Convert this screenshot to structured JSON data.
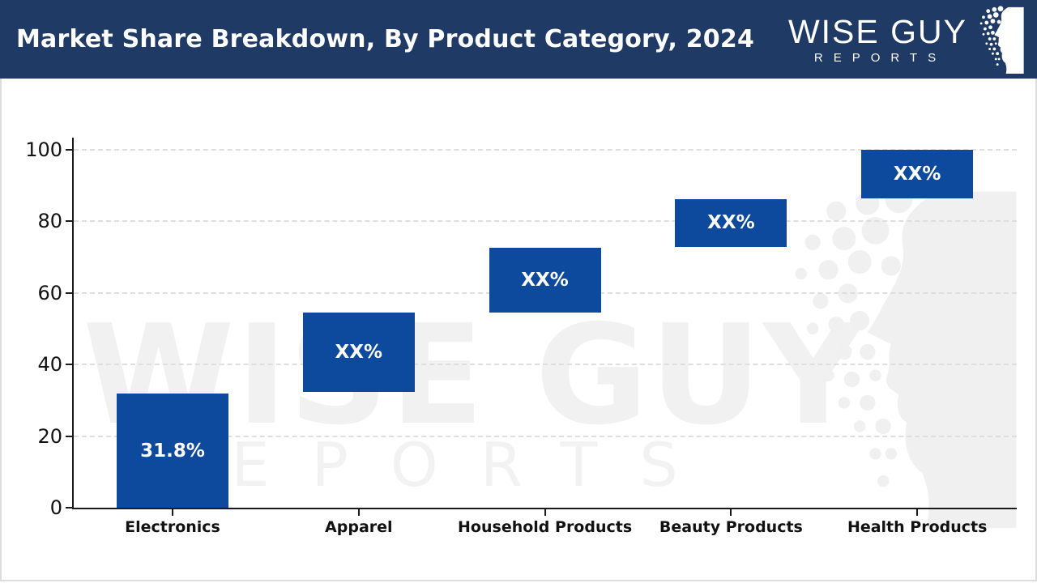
{
  "header": {
    "title": "Market Share Breakdown, By Product Category, 2024",
    "bg_color": "#1f3a64",
    "logo": {
      "name": "Wise Guy Reports",
      "line1": "WISE GUY",
      "line2": "REPORTS"
    }
  },
  "watermark": {
    "line1": "WISE GUY",
    "line2": "REPORTS"
  },
  "colors": {
    "header_bg": "#1f3a64",
    "bar": "#0d4a9e",
    "bar_label": "#ffffff",
    "axis": "#1a1a1a",
    "grid": "#dedede",
    "tick_label": "#111111",
    "watermark": "#f0f0f0"
  },
  "chart_data": {
    "type": "bar",
    "subtype": "floating-segment-waterfall",
    "title": "Market Share Breakdown, By Product Category, 2024",
    "categories": [
      "Electronics",
      "Apparel",
      "Household Products",
      "Beauty Products",
      "Health Products"
    ],
    "segments": [
      {
        "category": "Electronics",
        "start": 0,
        "end": 31.8,
        "label": "31.8%"
      },
      {
        "category": "Apparel",
        "start": 32.3,
        "end": 54.5,
        "label": "XX%"
      },
      {
        "category": "Household Products",
        "start": 54.5,
        "end": 72.6,
        "label": "XX%"
      },
      {
        "category": "Beauty Products",
        "start": 72.9,
        "end": 86.2,
        "label": "XX%"
      },
      {
        "category": "Health Products",
        "start": 86.4,
        "end": 100,
        "label": "XX%"
      }
    ],
    "yticks": [
      0,
      20,
      40,
      60,
      80,
      100
    ],
    "ylim": [
      0,
      103
    ],
    "xlabel": "",
    "ylabel": "",
    "grid": "horizontal-dashed",
    "legend": "none",
    "bar_color": "#0d4a9e",
    "label_color": "#ffffff"
  }
}
